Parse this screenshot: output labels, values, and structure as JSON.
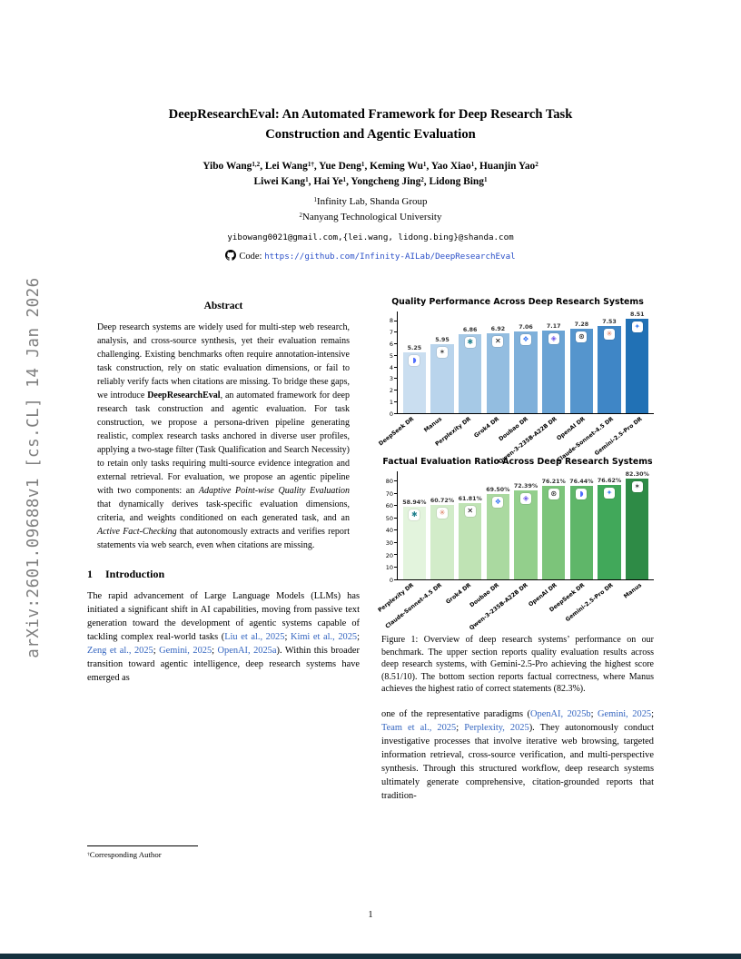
{
  "arxiv_stamp": {
    "text": "arXiv:2601.09688v1  [cs.CL]  14 Jan 2026"
  },
  "header": {
    "title_line1": "DeepResearchEval: An Automated Framework for Deep Research Task",
    "title_line2": "Construction and Agentic Evaluation",
    "author_line1": [
      {
        "text": "Yibo Wang",
        "style": "bold"
      },
      {
        "text": "1,2",
        "style": "boldsup"
      },
      {
        "text": ", ",
        "style": "bold"
      },
      {
        "text": "Lei Wang",
        "style": "bold"
      },
      {
        "text": "1†",
        "style": "boldsup"
      },
      {
        "text": ", ",
        "style": "bold"
      },
      {
        "text": "Yue Deng",
        "style": "bold"
      },
      {
        "text": "1",
        "style": "boldsup"
      },
      {
        "text": ", ",
        "style": "bold"
      },
      {
        "text": "Keming Wu",
        "style": "bold"
      },
      {
        "text": "1",
        "style": "boldsup"
      },
      {
        "text": ", ",
        "style": "bold"
      },
      {
        "text": "Yao Xiao",
        "style": "bold"
      },
      {
        "text": "1",
        "style": "boldsup"
      },
      {
        "text": ", ",
        "style": "bold"
      },
      {
        "text": "Huanjin Yao",
        "style": "bold"
      },
      {
        "text": "2",
        "style": "boldsup"
      }
    ],
    "author_line2": [
      {
        "text": "Liwei Kang",
        "style": "bold"
      },
      {
        "text": "1",
        "style": "boldsup"
      },
      {
        "text": ", ",
        "style": "bold"
      },
      {
        "text": "Hai Ye",
        "style": "bold"
      },
      {
        "text": "1",
        "style": "boldsup"
      },
      {
        "text": ", ",
        "style": "bold"
      },
      {
        "text": "Yongcheng Jing",
        "style": "bold"
      },
      {
        "text": "2",
        "style": "boldsup"
      },
      {
        "text": ", ",
        "style": "bold"
      },
      {
        "text": "Lidong Bing",
        "style": "bold"
      },
      {
        "text": "1",
        "style": "boldsup"
      }
    ],
    "affiliation1": [
      {
        "text": "1",
        "style": "sup"
      },
      {
        "text": "Infinity Lab, Shanda Group"
      }
    ],
    "affiliation2": [
      {
        "text": "2",
        "style": "sup"
      },
      {
        "text": "Nanyang Technological University"
      }
    ],
    "emails": "yibowang0021@gmail.com,{lei.wang, lidong.bing}@shanda.com",
    "code_label": "Code: ",
    "code_url": "https://github.com/Infinity-AILab/DeepResearchEval"
  },
  "abstract": {
    "heading": "Abstract",
    "body": [
      {
        "text": "Deep research systems are widely used for multi-step web research, analysis, and cross-source synthesis, yet their evaluation remains challenging. Existing benchmarks often require annotation-intensive task construction, rely on static evaluation dimensions, or fail to reliably verify facts when citations are missing. To bridge these gaps, we introduce "
      },
      {
        "text": "DeepResearchEval",
        "style": "bold"
      },
      {
        "text": ", an automated framework for deep research task construction and agentic evaluation. For task construction, we propose a persona-driven pipeline generating realistic, complex research tasks anchored in diverse user profiles, applying a two-stage filter (Task Qualification and Search Necessity) to retain only tasks requiring multi-source evidence integration and external retrieval. For evaluation, we propose an agentic pipeline with two components: an "
      },
      {
        "text": "Adaptive Point-wise Quality Evaluation",
        "style": "italic"
      },
      {
        "text": " that dynamically derives task-specific evaluation dimensions, criteria, and weights conditioned on each generated task, and an "
      },
      {
        "text": "Active Fact-Checking",
        "style": "italic"
      },
      {
        "text": " that autonomously extracts and verifies report statements via web search, even when citations are missing."
      }
    ]
  },
  "section1": {
    "number": "1",
    "title": "Introduction",
    "body": [
      {
        "text": "The rapid advancement of Large Language Models (LLMs) has initiated a significant shift in AI capabilities, moving from passive text generation toward the development of agentic systems capable of tackling complex real-world tasks ("
      },
      {
        "text": "Liu et al., 2025",
        "style": "link"
      },
      {
        "text": "; "
      },
      {
        "text": "Kimi et al., 2025",
        "style": "link"
      },
      {
        "text": "; "
      },
      {
        "text": "Zeng et al., 2025",
        "style": "link"
      },
      {
        "text": "; "
      },
      {
        "text": "Gemini, 2025",
        "style": "link"
      },
      {
        "text": "; "
      },
      {
        "text": "OpenAI, 2025a",
        "style": "link"
      },
      {
        "text": "). Within this broader transition toward agentic intelligence, deep research systems have emerged as"
      }
    ]
  },
  "continuation": {
    "body": [
      {
        "text": "one of the representative paradigms ("
      },
      {
        "text": "OpenAI, 2025b",
        "style": "link"
      },
      {
        "text": "; "
      },
      {
        "text": "Gemini, 2025",
        "style": "link"
      },
      {
        "text": "; "
      },
      {
        "text": "Team et al., 2025",
        "style": "link"
      },
      {
        "text": "; "
      },
      {
        "text": "Perplexity, 2025",
        "style": "link"
      },
      {
        "text": "). They autonomously conduct investigative processes that involve iterative web browsing, targeted information retrieval, cross-source verification, and multi-perspective synthesis. Through this structured workflow, deep research systems ultimately generate comprehensive, citation-grounded reports that tradition-"
      }
    ]
  },
  "figure": {
    "caption": "Figure 1: Overview of deep research systems’ performance on our benchmark. The upper section reports quality evaluation results across deep research systems, with Gemini-2.5-Pro achieving the highest score (8.51/10). The bottom section reports factual correctness, where Manus achieves the highest ratio of correct statements (82.3%).",
    "charts": [
      {
        "type": "bar",
        "title": "Quality Performance Across Deep Research Systems",
        "categories": [
          "DeepSeek DR",
          "Manus",
          "Perplexity DR",
          "Grok4 DR",
          "Doubao DR",
          "Qwen-3-235B-A22B DR",
          "OpenAI DR",
          "Claude-Sonnet-4.5 DR",
          "Gemini-2.5-Pro DR"
        ],
        "values": [
          5.25,
          5.95,
          6.86,
          6.92,
          7.06,
          7.17,
          7.28,
          7.53,
          8.51
        ],
        "value_labels": [
          "5.25",
          "5.95",
          "6.86",
          "6.92",
          "7.06",
          "7.17",
          "7.28",
          "7.53",
          "8.51"
        ],
        "ylim": [
          0,
          8.8
        ],
        "yticks": [
          0,
          1,
          2,
          3,
          4,
          5,
          6,
          7,
          8
        ],
        "bar_colors": [
          "#cadef0",
          "#b9d4ec",
          "#a6c9e6",
          "#93bde0",
          "#7fb0da",
          "#6aa3d4",
          "#5595cd",
          "#3f86c6",
          "#2171b5"
        ],
        "icons": [
          {
            "name": "deepseek-icon",
            "glyph": "◗",
            "color": "#4d6bfe"
          },
          {
            "name": "manus-icon",
            "glyph": "✶",
            "color": "#3c3c3c"
          },
          {
            "name": "perplexity-icon",
            "glyph": "✱",
            "color": "#20808d"
          },
          {
            "name": "grok-icon",
            "glyph": "✕",
            "color": "#000000"
          },
          {
            "name": "doubao-icon",
            "glyph": "❖",
            "color": "#3e7cf5"
          },
          {
            "name": "qwen-icon",
            "glyph": "◈",
            "color": "#6f58e9"
          },
          {
            "name": "openai-icon",
            "glyph": "⊛",
            "color": "#111111"
          },
          {
            "name": "claude-icon",
            "glyph": "✳",
            "color": "#d97757"
          },
          {
            "name": "gemini-icon",
            "glyph": "✦",
            "color": "#4285f4"
          }
        ]
      },
      {
        "type": "bar",
        "title": "Factual Evaluation Ratio Across Deep Research Systems",
        "categories": [
          "Perplexity DR",
          "Claude-Sonnet-4.5 DR",
          "Grok4 DR",
          "Doubao DR",
          "Qwen-3-235B-A22B DR",
          "OpenAI DR",
          "DeepSeek DR",
          "Gemini-2.5-Pro DR",
          "Manus"
        ],
        "values": [
          58.94,
          60.72,
          61.81,
          69.5,
          72.39,
          76.21,
          76.44,
          76.62,
          82.3
        ],
        "value_labels": [
          "58.94%",
          "60.72%",
          "61.81%",
          "69.50%",
          "72.39%",
          "76.21%",
          "76.44%",
          "76.62%",
          "82.30%"
        ],
        "ylim": [
          0,
          88
        ],
        "yticks": [
          0,
          10,
          20,
          30,
          40,
          50,
          60,
          70,
          80
        ],
        "bar_colors": [
          "#e3f4dd",
          "#d2ecc9",
          "#bfe3b4",
          "#aad9a0",
          "#93cf8c",
          "#7cc47a",
          "#5fb669",
          "#41a85a",
          "#2e8b46"
        ],
        "icons": [
          {
            "name": "perplexity-icon",
            "glyph": "✱",
            "color": "#20808d"
          },
          {
            "name": "claude-icon",
            "glyph": "✳",
            "color": "#d97757"
          },
          {
            "name": "grok-icon",
            "glyph": "✕",
            "color": "#000000"
          },
          {
            "name": "doubao-icon",
            "glyph": "❖",
            "color": "#3e7cf5"
          },
          {
            "name": "qwen-icon",
            "glyph": "◈",
            "color": "#6f58e9"
          },
          {
            "name": "openai-icon",
            "glyph": "⊛",
            "color": "#111111"
          },
          {
            "name": "deepseek-icon",
            "glyph": "◗",
            "color": "#4d6bfe"
          },
          {
            "name": "gemini-icon",
            "glyph": "✦",
            "color": "#4285f4"
          },
          {
            "name": "manus-icon",
            "glyph": "✶",
            "color": "#3c3c3c"
          }
        ]
      }
    ]
  },
  "footnote": [
    {
      "text": "†",
      "style": "sup"
    },
    {
      "text": "Corresponding Author"
    }
  ],
  "page": {
    "number": "1"
  }
}
